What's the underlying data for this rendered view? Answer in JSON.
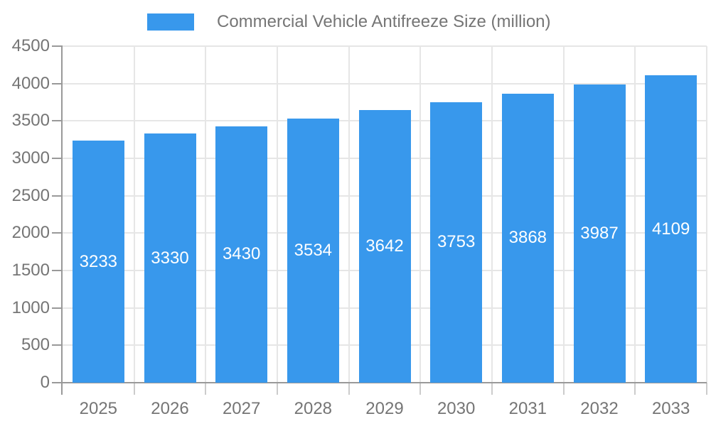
{
  "legend": {
    "label": "Commercial Vehicle Antifreeze Size (million)",
    "swatch_color": "#3898ec"
  },
  "chart_data": {
    "type": "bar",
    "title": "Commercial Vehicle Antifreeze Size (million)",
    "categories": [
      "2025",
      "2026",
      "2027",
      "2028",
      "2029",
      "2030",
      "2031",
      "2032",
      "2033"
    ],
    "values": [
      3233,
      3330,
      3430,
      3534,
      3642,
      3753,
      3868,
      3987,
      4109
    ],
    "xlabel": "",
    "ylabel": "",
    "ylim": [
      0,
      4500
    ],
    "ytick_step": 500,
    "yticks": [
      0,
      500,
      1000,
      1500,
      2000,
      2500,
      3000,
      3500,
      4000,
      4500
    ],
    "grid": true,
    "legend_position": "top",
    "value_labels": "inside-center",
    "colors": {
      "bar": "#3898ec",
      "value_label": "#ffffff",
      "axis_text": "#757575",
      "axis_line": "#999999",
      "gridline": "#e6e6e6",
      "x_tick": "#cccccc",
      "background": "#ffffff"
    }
  }
}
